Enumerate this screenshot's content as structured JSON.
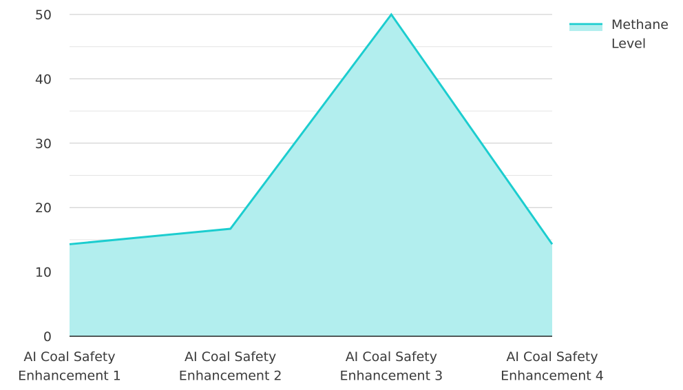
{
  "chart_data": {
    "type": "area",
    "title": "",
    "xlabel": "",
    "ylabel": "",
    "categories": [
      [
        "AI Coal Safety",
        "Enhancement 1"
      ],
      [
        "AI Coal Safety",
        "Enhancement 2"
      ],
      [
        "AI Coal Safety",
        "Enhancement 3"
      ],
      [
        "AI Coal Safety",
        "Enhancement 4"
      ]
    ],
    "series": [
      {
        "name": "Methane Level",
        "legend_lines": [
          "Methane",
          "Level"
        ],
        "values": [
          14.3,
          16.7,
          50,
          14.3
        ],
        "line_color": "#1ccdcf",
        "fill_color": "#b2eeee"
      }
    ],
    "ylim": [
      0,
      50
    ],
    "yticks": [
      0,
      10,
      20,
      30,
      40,
      50
    ],
    "grid": true,
    "legend_position": "top-right"
  }
}
